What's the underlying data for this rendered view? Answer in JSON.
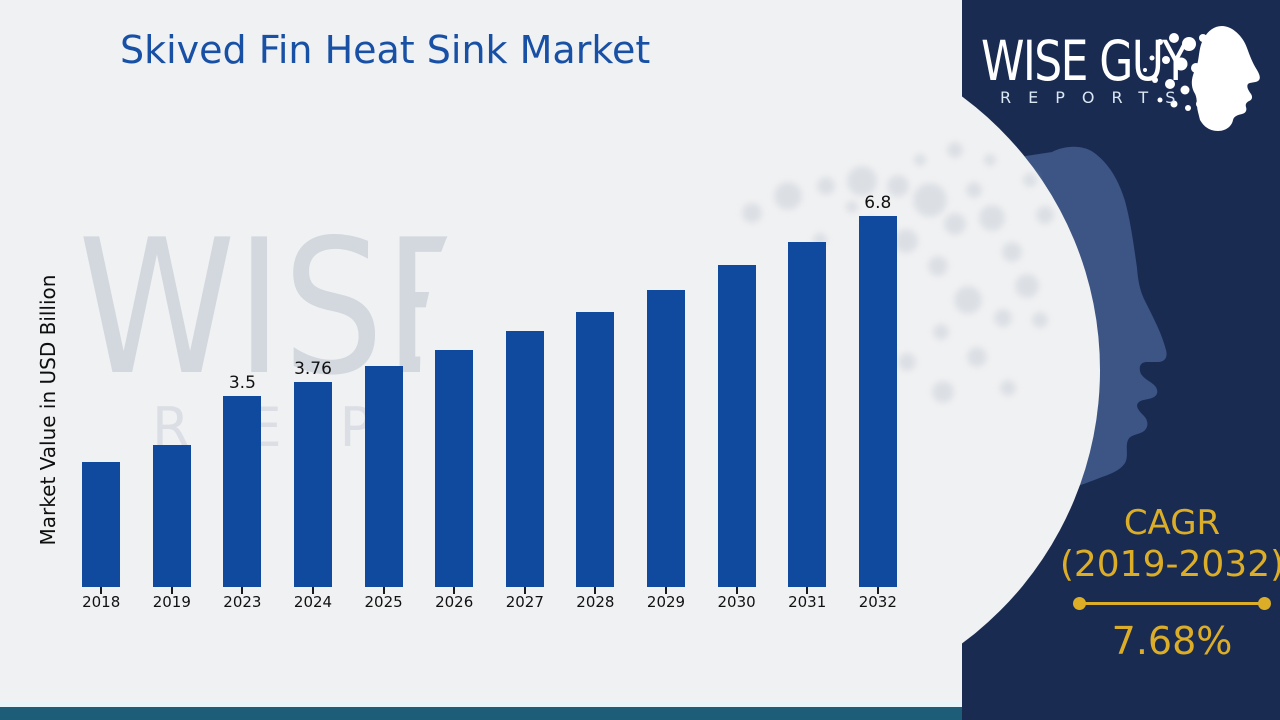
{
  "title": "Skived Fin Heat Sink Market",
  "watermark": {
    "line1": "WISE GUY",
    "line2": "REPORTS"
  },
  "chart_data": {
    "type": "bar",
    "title": "Skived Fin Heat Sink Market",
    "categories": [
      "2018",
      "2019",
      "2023",
      "2024",
      "2025",
      "2026",
      "2027",
      "2028",
      "2029",
      "2030",
      "2031",
      "2032"
    ],
    "values": [
      2.3,
      2.6,
      3.5,
      3.76,
      4.05,
      4.35,
      4.7,
      5.05,
      5.45,
      5.9,
      6.33,
      6.8
    ],
    "data_labels": [
      "",
      "",
      "3.5",
      "3.76",
      "",
      "",
      "",
      "",
      "",
      "",
      "",
      "6.8"
    ],
    "xlabel": "",
    "ylabel": "Market Value in USD Billion",
    "ylim": [
      0,
      7.3
    ],
    "grid": false,
    "legend": false,
    "bar_color": "#0f4a9e"
  },
  "side_panel": {
    "logo_line1": "WISE GUY",
    "logo_line2": "REPORTS",
    "cagr_label": "CAGR",
    "cagr_range": "(2019-2032)",
    "cagr_value": "7.68%",
    "accent_color": "#dcae28",
    "background": "#1a2b52"
  },
  "colors": {
    "page_background": "#f0f1f2",
    "title_text": "#1750a5",
    "teal_strip": "#1e5d77",
    "watermark_text": "#d3d8df",
    "face_silhouette": "#3c5584"
  }
}
